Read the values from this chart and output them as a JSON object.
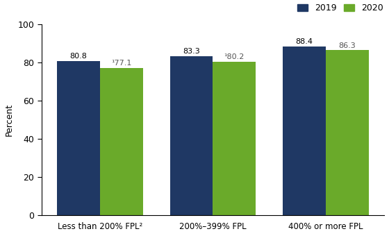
{
  "categories": [
    "Less than 200% FPL²",
    "200%–399% FPL",
    "400% or more FPL"
  ],
  "values_2019": [
    80.8,
    83.3,
    88.4
  ],
  "values_2020": [
    77.1,
    80.2,
    86.3
  ],
  "labels_2019": [
    "80.8",
    "83.3",
    "88.4"
  ],
  "labels_2020": [
    "¹77.1",
    "¹80.2",
    "86.3"
  ],
  "color_2019": "#1F3864",
  "color_2020": "#6aaa2a",
  "ylabel": "Percent",
  "ylim": [
    0,
    100
  ],
  "yticks": [
    0,
    20,
    40,
    60,
    80,
    100
  ],
  "legend_labels": [
    "2019",
    "2020"
  ],
  "bar_width": 0.38,
  "figsize": [
    5.6,
    3.4
  ],
  "dpi": 100
}
